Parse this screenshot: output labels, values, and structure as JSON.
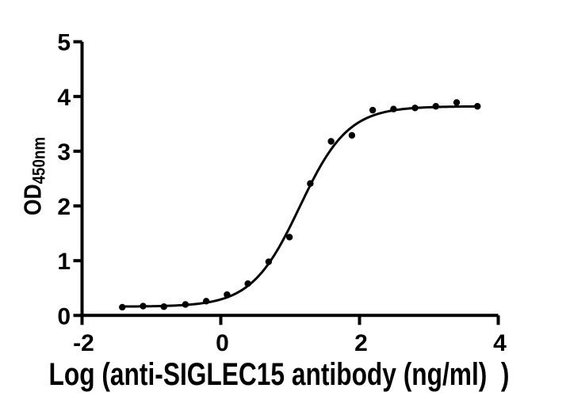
{
  "figure": {
    "description": "ELISA dose-response binding curve for anti-SIGLEC15 antibody",
    "background": "#ffffff"
  },
  "chart_data": {
    "type": "scatter",
    "title": "",
    "xlabel": "Log (anti-SIGLEC15 antibody (ng/ml)  )",
    "ylabel_main": "OD",
    "ylabel_subscript": "450nm",
    "xlim": [
      -2,
      4
    ],
    "ylim": [
      0,
      5
    ],
    "xticks": [
      "-2",
      "0",
      "2",
      "4"
    ],
    "yticks": [
      "0",
      "1",
      "2",
      "3",
      "4",
      "5"
    ],
    "grid": false,
    "legend": "none",
    "colors": {
      "axis": "#000000",
      "marker": "#000000",
      "curve": "#000000",
      "background": "#ffffff"
    },
    "series": [
      {
        "name": "anti-SIGLEC15 antibody binding data points",
        "type": "scatter",
        "marker": "filled-circle",
        "log_x": [
          -1.42,
          -1.12,
          -0.82,
          -0.51,
          -0.21,
          0.09,
          0.39,
          0.69,
          0.99,
          1.29,
          1.59,
          1.89,
          2.19,
          2.49,
          2.8,
          3.1,
          3.4,
          3.7
        ],
        "od_450nm": [
          0.15,
          0.17,
          0.16,
          0.2,
          0.26,
          0.38,
          0.58,
          0.98,
          1.43,
          2.41,
          3.18,
          3.29,
          3.75,
          3.77,
          3.79,
          3.82,
          3.89,
          3.82
        ]
      },
      {
        "name": "four-parameter logistic fit curve",
        "type": "line",
        "fit": {
          "model": "4PL",
          "bottom": 0.16,
          "top": 3.82,
          "log_ec50": 1.14,
          "hill_slope": 1.25
        },
        "x_range": [
          -1.42,
          3.7
        ]
      }
    ]
  }
}
